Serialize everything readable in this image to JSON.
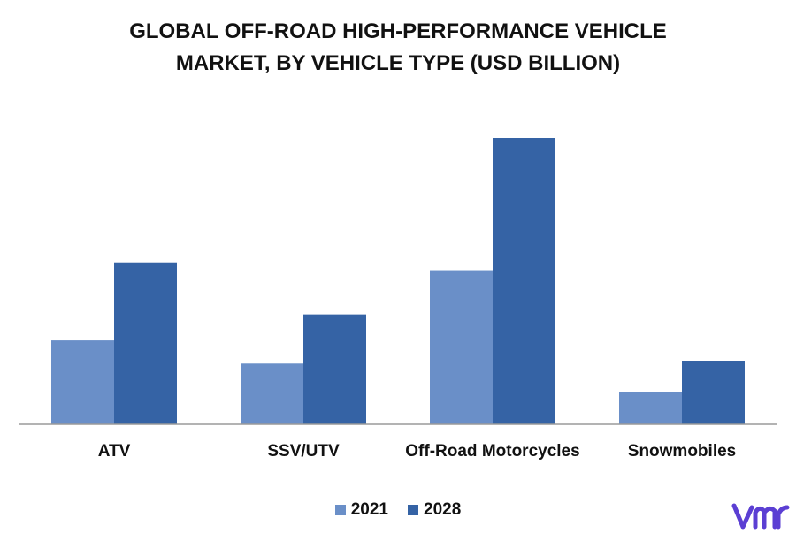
{
  "colors": {
    "series_2021": "#6a8fc8",
    "series_2028": "#3563a5",
    "axis": "#9a9a9a",
    "logo": "#5b3fd3"
  },
  "chart_data": {
    "type": "bar",
    "title_lines": [
      "GLOBAL OFF-ROAD HIGH-PERFORMANCE  VEHICLE",
      "MARKET, BY VEHICLE TYPE (USD BILLION)"
    ],
    "categories": [
      "ATV",
      "SSV/UTV",
      "Off-Road Motorcycles",
      "Snowmobiles"
    ],
    "series": [
      {
        "name": "2021",
        "values": [
          2.9,
          2.1,
          5.3,
          1.1
        ]
      },
      {
        "name": "2028",
        "values": [
          5.6,
          3.8,
          9.9,
          2.2
        ]
      }
    ],
    "ylim": [
      0,
      11
    ],
    "grid": false,
    "legend_position": "bottom",
    "xlabel": "",
    "ylabel": ""
  },
  "logo": {
    "icon": "vmr-logo-icon"
  }
}
